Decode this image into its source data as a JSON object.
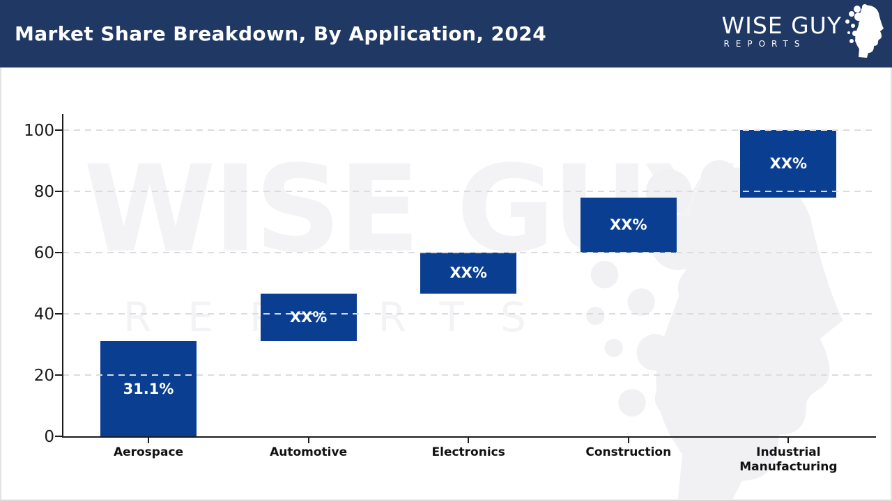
{
  "header": {
    "title": "Market Share Breakdown, By Application, 2024",
    "bg_color": "#1f3864",
    "logo": {
      "wordmark": "WISE GUY",
      "subtext": "REPORTS"
    }
  },
  "watermark": {
    "wordmark": "WISE GUY",
    "subtext": "REPORTS"
  },
  "chart_data": {
    "type": "bar",
    "subtype": "waterfall",
    "title": "Market Share Breakdown, By Application, 2024",
    "categories": [
      "Aerospace",
      "Automotive",
      "Electronics",
      "Construction",
      "Industrial Manufacturing"
    ],
    "segments": [
      {
        "category": "Aerospace",
        "start": 0,
        "end": 31.1,
        "label": "31.1%"
      },
      {
        "category": "Automotive",
        "start": 31.1,
        "end": 46.6,
        "label": "XX%"
      },
      {
        "category": "Electronics",
        "start": 46.6,
        "end": 60.0,
        "label": "XX%"
      },
      {
        "category": "Construction",
        "start": 60.0,
        "end": 78.0,
        "label": "XX%"
      },
      {
        "category": "Industrial Manufacturing",
        "start": 78.0,
        "end": 100.0,
        "label": "XX%"
      }
    ],
    "y_ticks": [
      0,
      20,
      40,
      60,
      80,
      100
    ],
    "ylim": [
      0,
      100
    ],
    "xlabel": "",
    "ylabel": "",
    "grid": "dashed-horizontal",
    "legend": "none",
    "colors": {
      "bar": "#0a3e91",
      "bar_label": "#ffffff",
      "header_bg": "#1f3864",
      "grid": "#dcdcdc",
      "axis": "#1a1a1a",
      "watermark": "#f3f3f6"
    }
  }
}
